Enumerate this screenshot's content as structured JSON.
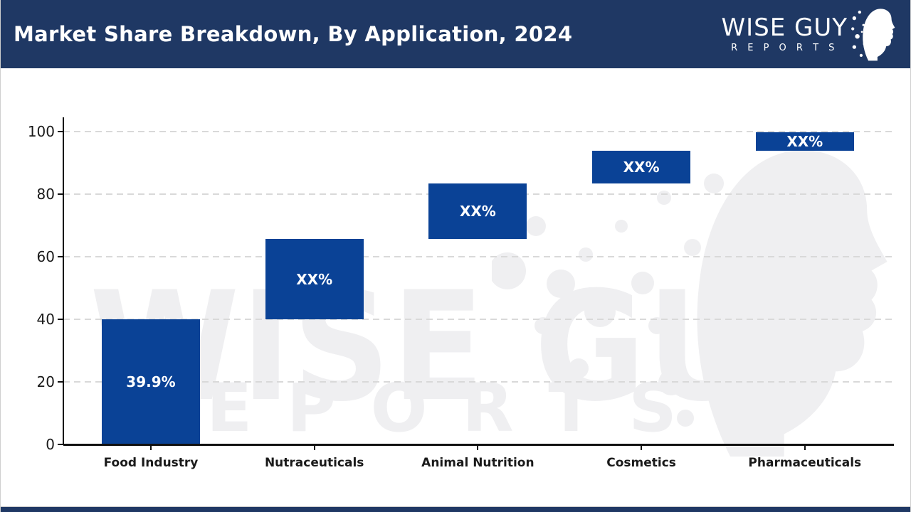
{
  "header": {
    "title": "Market Share Breakdown, By Application, 2024",
    "bg_color": "#1f3864",
    "logo": {
      "line1": "WISE GUY",
      "line2": "R E P O R T S"
    }
  },
  "watermark": {
    "line1": "WISE GUY",
    "line2": "R E P O R T S"
  },
  "footer": {
    "bg_color": "#1f3864"
  },
  "chart_data": {
    "type": "bar",
    "variant": "waterfall",
    "title": "Market Share Breakdown, By Application, 2024",
    "categories": [
      "Food Industry",
      "Nutraceuticals",
      "Animal Nutrition",
      "Cosmetics",
      "Pharmaceuticals"
    ],
    "segments": [
      {
        "category": "Food Industry",
        "start": 0,
        "end": 39.9,
        "value": 39.9,
        "label": "39.9%"
      },
      {
        "category": "Nutraceuticals",
        "start": 39.9,
        "end": 65.6,
        "value": 25.7,
        "label": "XX%"
      },
      {
        "category": "Animal Nutrition",
        "start": 65.6,
        "end": 83.4,
        "value": 17.8,
        "label": "XX%"
      },
      {
        "category": "Cosmetics",
        "start": 83.4,
        "end": 93.8,
        "value": 10.4,
        "label": "XX%"
      },
      {
        "category": "Pharmaceuticals",
        "start": 93.8,
        "end": 99.8,
        "value": 6,
        "label": "XX%"
      }
    ],
    "bar_color": "#0a4296",
    "bar_label_color": "#ffffff",
    "axis_color": "#111111",
    "grid_color": "#d9d9d9",
    "xlabel": "",
    "ylabel": "",
    "ylim": [
      0,
      100
    ],
    "yticks": [
      0,
      20,
      40,
      60,
      80,
      100
    ],
    "grid": "horizontal-dashed",
    "legend": "none"
  }
}
